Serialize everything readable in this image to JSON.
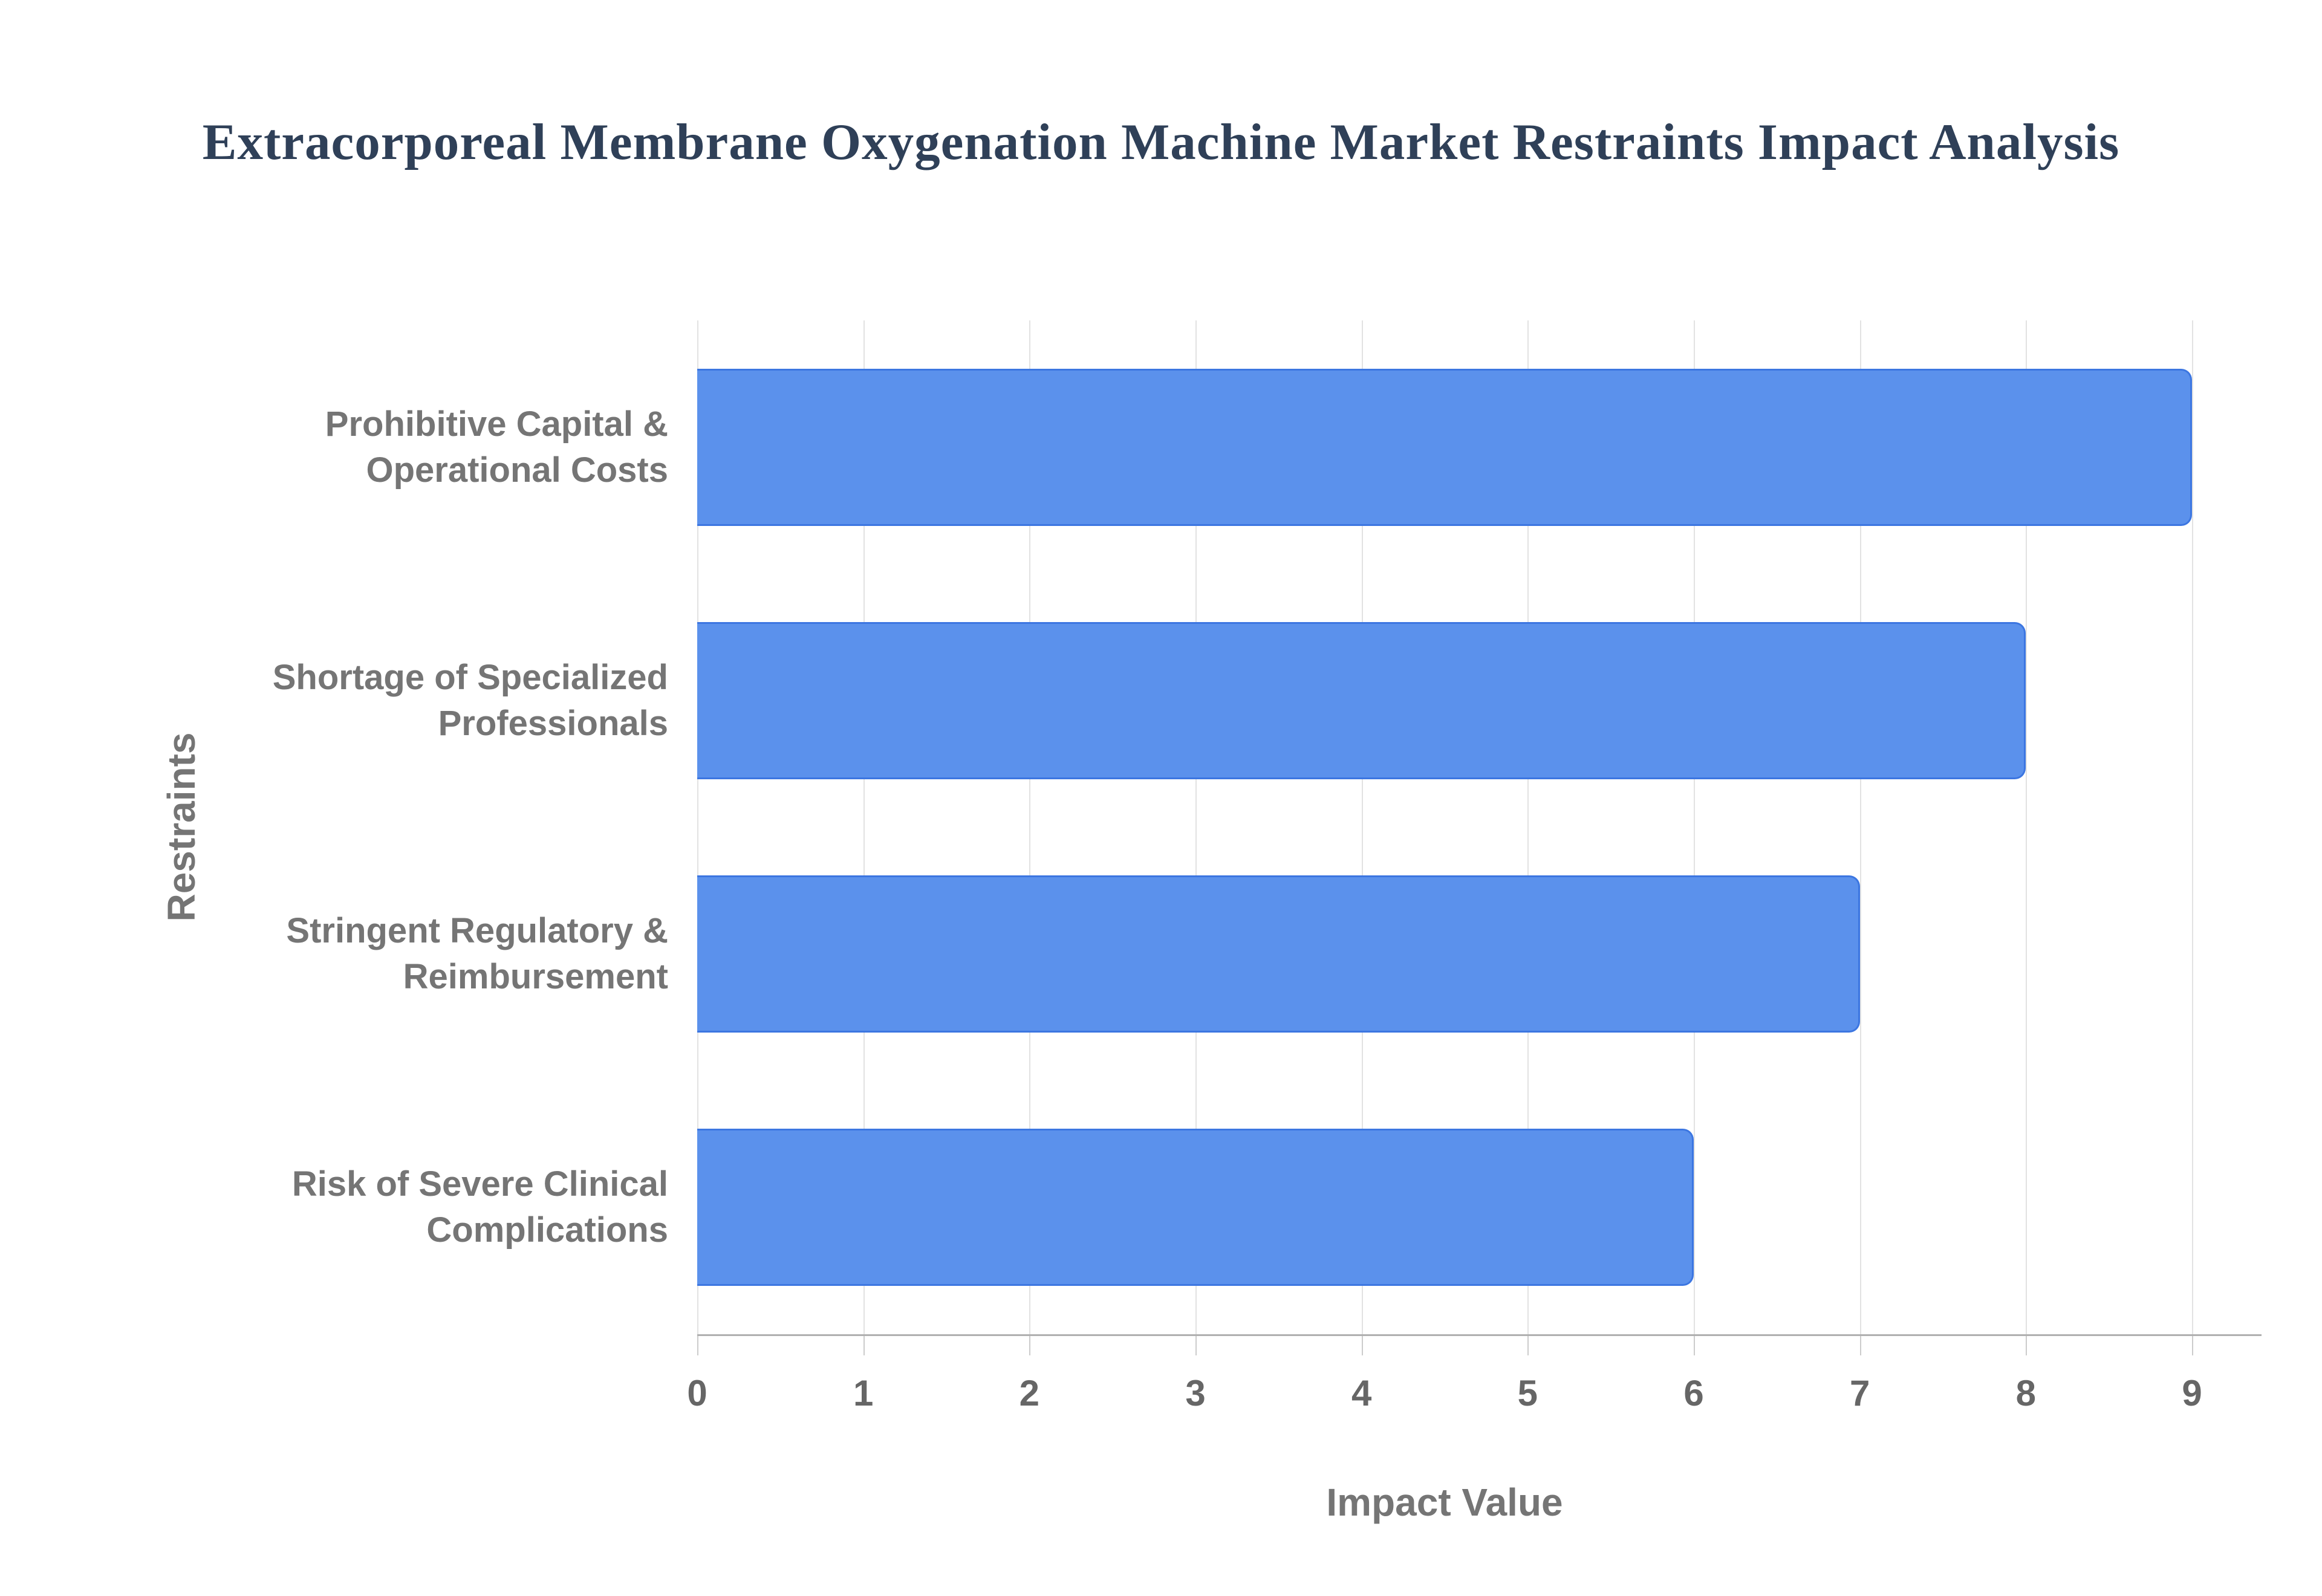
{
  "chart_data": {
    "type": "bar",
    "orientation": "horizontal",
    "title": "Extracorporeal Membrane Oxygenation Machine Market Restraints Impact Analysis",
    "categories": [
      "Prohibitive Capital &\nOperational Costs",
      "Shortage of Specialized\nProfessionals",
      "Stringent Regulatory &\nReimbursement",
      "Risk of Severe Clinical\nComplications"
    ],
    "values": [
      9,
      8,
      7,
      6
    ],
    "xlabel": "Impact Value",
    "ylabel": "Restraints",
    "xlim": [
      0,
      9
    ],
    "x_ticks": [
      "0",
      "1",
      "2",
      "3",
      "4",
      "5",
      "6",
      "7",
      "8",
      "9"
    ],
    "grid": "vertical",
    "legend": "none",
    "colors": {
      "background": "#FFFFFF",
      "title": "#2F4058",
      "bar_fill": "#5B91EC",
      "bar_border": "#3C76E1",
      "gridline": "#E2E2E2",
      "axis_line": "#B0B0B0",
      "tick_mark": "#CCCCCC",
      "tick_label": "#666666",
      "category_label": "#757575",
      "axis_title": "#757575"
    }
  }
}
